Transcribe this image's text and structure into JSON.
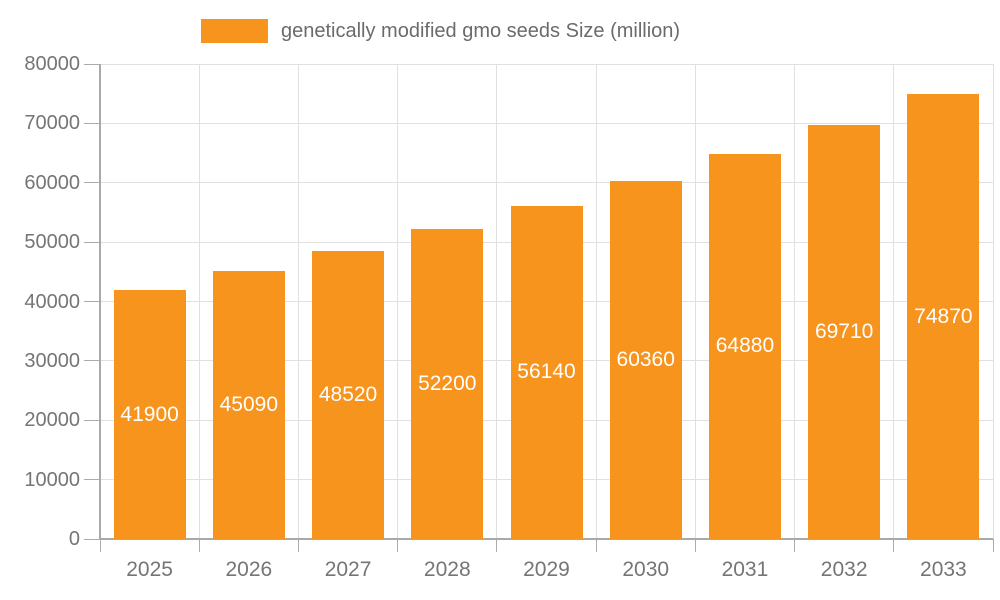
{
  "chart_data": {
    "type": "bar",
    "title": "",
    "xlabel": "",
    "ylabel": "",
    "categories": [
      "2025",
      "2026",
      "2027",
      "2028",
      "2029",
      "2030",
      "2031",
      "2032",
      "2033"
    ],
    "series": [
      {
        "name": "genetically modified gmo seeds Size (million)",
        "values": [
          41900,
          45090,
          48520,
          52200,
          56140,
          60360,
          64880,
          69710,
          74870
        ]
      }
    ],
    "value_labels": [
      "41900",
      "45090",
      "48520",
      "52200",
      "56140",
      "60360",
      "64880",
      "69710",
      "74870"
    ],
    "ylim": [
      0,
      80000
    ],
    "ytick_step": 10000,
    "ytick_labels": [
      "0",
      "10000",
      "20000",
      "30000",
      "40000",
      "50000",
      "60000",
      "70000",
      "80000"
    ],
    "grid": true,
    "legend_position": "top",
    "colors": {
      "bar": "#F7941E",
      "bar_label": "#FFFFFF",
      "gridline": "#E0E0E0",
      "axis_line": "#A9A9A9",
      "tick": "#ABABAB",
      "axis_label": "#757575",
      "legend_text": "#6B6B6B",
      "background": "#FFFFFF"
    }
  }
}
